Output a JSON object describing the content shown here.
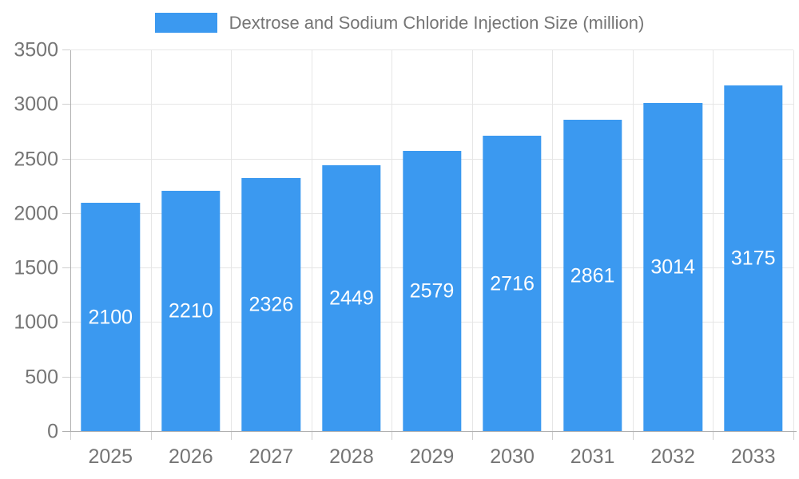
{
  "chart_data": {
    "type": "bar",
    "title": "Dextrose and Sodium Chloride Injection Size (million)",
    "categories": [
      "2025",
      "2026",
      "2027",
      "2028",
      "2029",
      "2030",
      "2031",
      "2032",
      "2033"
    ],
    "values": [
      2100,
      2210,
      2326,
      2449,
      2579,
      2716,
      2861,
      3014,
      3175
    ],
    "xlabel": "",
    "ylabel": "",
    "ylim": [
      0,
      3500
    ],
    "yticks": [
      0,
      500,
      1000,
      1500,
      2000,
      2500,
      3000,
      3500
    ],
    "grid": true,
    "legend_position": "top-center",
    "bar_labels_inside": true,
    "colors": {
      "bar": "#3b99f0",
      "bar_value_text": "#ffffff",
      "axis_text": "#757575",
      "gridline": "#e6e6e6",
      "axis_line": "#b0b0b0"
    }
  }
}
